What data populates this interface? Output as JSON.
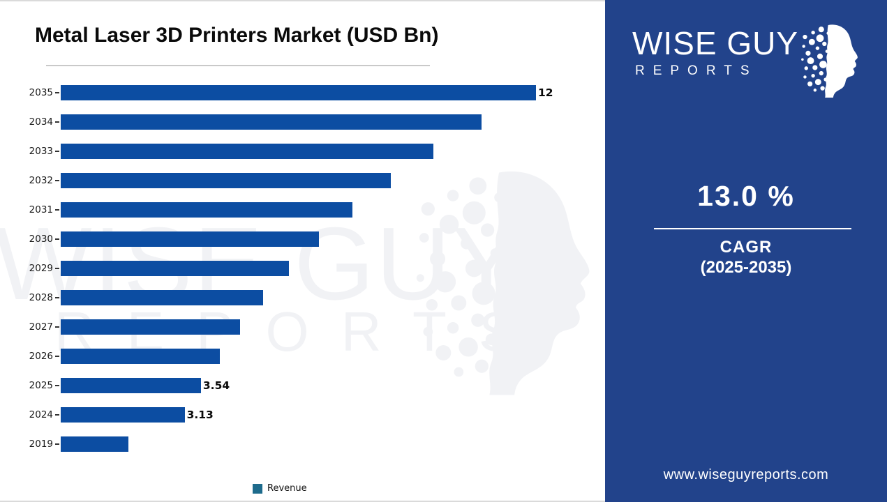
{
  "chart_data": {
    "type": "bar",
    "orientation": "horizontal",
    "title": "Metal Laser 3D Printers Market (USD Bn)",
    "xlabel": "",
    "ylabel": "",
    "xlim": [
      0,
      12
    ],
    "grid": false,
    "legend_label": "Revenue",
    "legend_position": "bottom-center",
    "categories": [
      "2035",
      "2034",
      "2033",
      "2032",
      "2031",
      "2030",
      "2029",
      "2028",
      "2027",
      "2026",
      "2025",
      "2024",
      "2019"
    ],
    "rows": [
      {
        "year": "2035",
        "value": 12.0,
        "label": "12"
      },
      {
        "year": "2034",
        "value": 10.63,
        "label": ""
      },
      {
        "year": "2033",
        "value": 9.41,
        "label": ""
      },
      {
        "year": "2032",
        "value": 8.33,
        "label": ""
      },
      {
        "year": "2031",
        "value": 7.37,
        "label": ""
      },
      {
        "year": "2030",
        "value": 6.52,
        "label": ""
      },
      {
        "year": "2029",
        "value": 5.77,
        "label": ""
      },
      {
        "year": "2028",
        "value": 5.11,
        "label": ""
      },
      {
        "year": "2027",
        "value": 4.53,
        "label": ""
      },
      {
        "year": "2026",
        "value": 4.02,
        "label": ""
      },
      {
        "year": "2025",
        "value": 3.54,
        "label": "3.54"
      },
      {
        "year": "2024",
        "value": 3.13,
        "label": "3.13"
      },
      {
        "year": "2019",
        "value": 1.7,
        "label": ""
      }
    ]
  },
  "brand": {
    "name_line1": "WISE GUY",
    "name_line2": "REPORTS"
  },
  "panel": {
    "cagr_value": "13.0 %",
    "cagr_label": "CAGR",
    "cagr_period": "(2025-2035)",
    "website": "www.wiseguyreports.com"
  },
  "watermark": {
    "line1": "WISE GUY",
    "line2": "REPORTS"
  },
  "colors": {
    "bar": "#0C4DA2",
    "panel_bg": "#22438B",
    "legend_swatch": "#1E6B8C",
    "watermark": "#f1f2f5",
    "title_text": "#0a0a0a",
    "panel_text": "#ffffff"
  }
}
